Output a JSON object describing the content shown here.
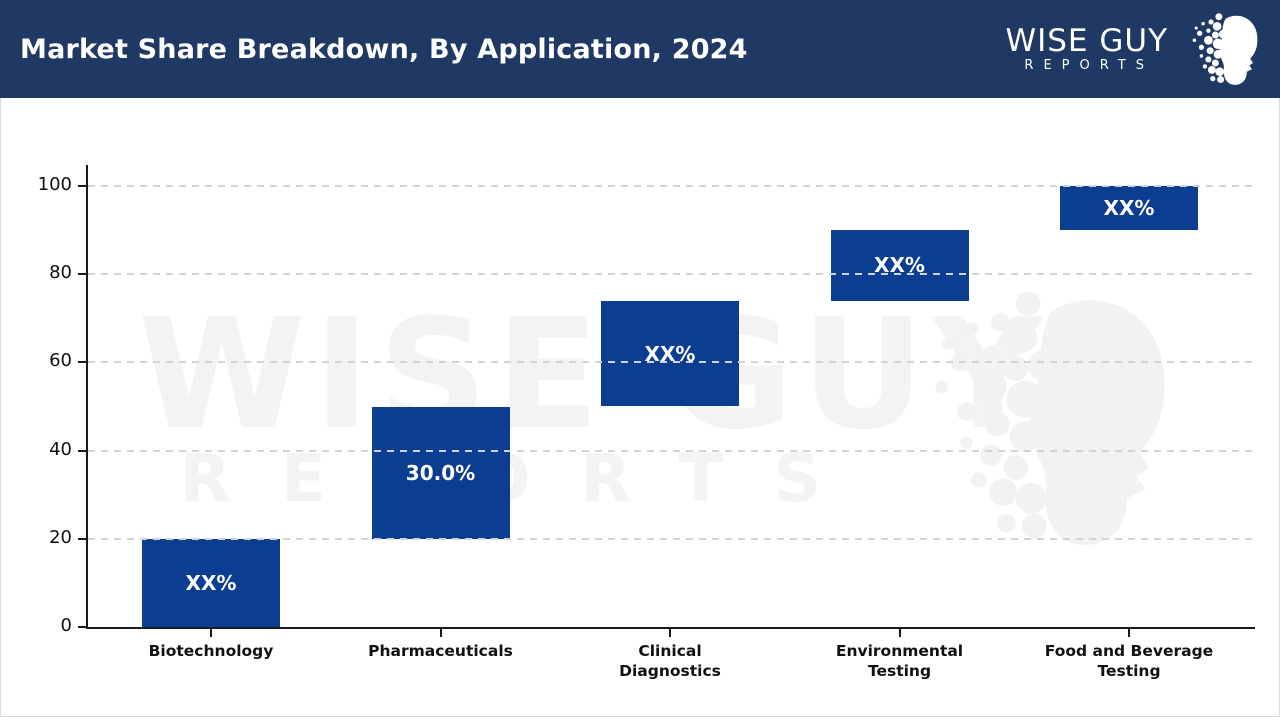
{
  "header": {
    "title": "Market Share Breakdown, By Application, 2024",
    "logo": {
      "line1": "WISE GUY",
      "line2": "REPORTS"
    }
  },
  "watermark": {
    "line1": "WISE GUY",
    "line2": "REPORTS"
  },
  "chart_data": {
    "type": "bar",
    "subtype": "waterfall",
    "title": "Market Share Breakdown, By Application, 2024",
    "categories": [
      "Biotechnology",
      "Pharmaceuticals",
      "Clinical Diagnostics",
      "Environmental Testing",
      "Food and Beverage Testing"
    ],
    "category_display_lines": [
      [
        "Biotechnology"
      ],
      [
        "Pharmaceuticals"
      ],
      [
        "Clinical",
        "Diagnostics"
      ],
      [
        "Environmental",
        "Testing"
      ],
      [
        "Food and Beverage",
        "Testing"
      ]
    ],
    "segments": [
      {
        "category": "Biotechnology",
        "start": 0,
        "end": 20,
        "value": 20,
        "label": "XX%"
      },
      {
        "category": "Pharmaceuticals",
        "start": 20,
        "end": 50,
        "value": 30,
        "label": "30.0%"
      },
      {
        "category": "Clinical Diagnostics",
        "start": 50,
        "end": 74,
        "value": 24,
        "label": "XX%"
      },
      {
        "category": "Environmental Testing",
        "start": 74,
        "end": 90,
        "value": 16,
        "label": "XX%"
      },
      {
        "category": "Food and Beverage Testing",
        "start": 90,
        "end": 100,
        "value": 10,
        "label": "XX%"
      }
    ],
    "yticks": [
      0,
      20,
      40,
      60,
      80,
      100
    ],
    "ylim": [
      0,
      105
    ],
    "xlabel": "",
    "ylabel": "",
    "grid": "horizontal-dashed",
    "legend": "none",
    "bar_color": "#0b3d91",
    "bar_label_color": "#ffffff",
    "header_color": "#1f3864"
  }
}
